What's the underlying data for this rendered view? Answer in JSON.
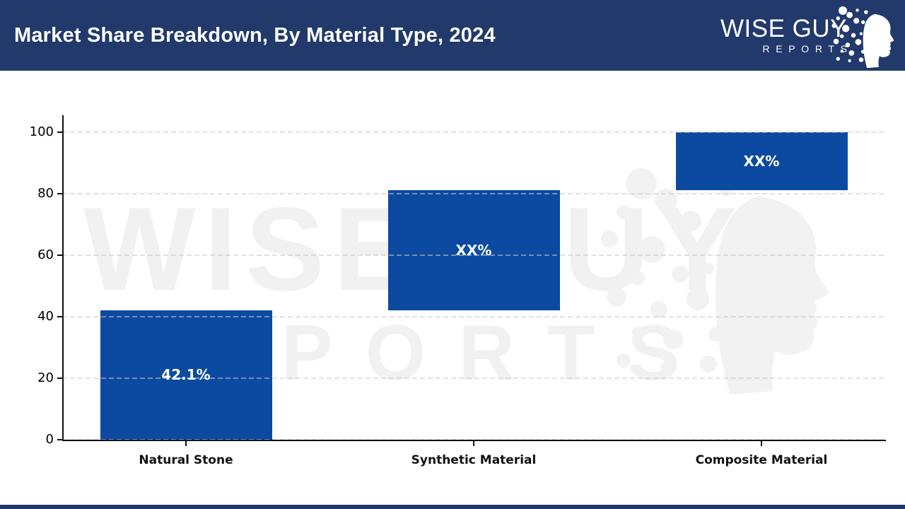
{
  "header": {
    "title": "Market Share Breakdown, By Material Type, 2024",
    "brand": {
      "name_line": "WISE GUY",
      "reports_line": "REPORTS"
    }
  },
  "watermark": {
    "name_line": "WISE GUY",
    "reports_line": "REPORTS"
  },
  "colors": {
    "page_bg": "#ffffff",
    "header_bg": "#21396b",
    "title_text": "#ffffff",
    "bar_fill": "#0c4aa1",
    "bar_label": "#ffffff",
    "grid_line": "#c8c8c8",
    "axis_line": "#111111",
    "tick_label": "#000000",
    "category_label": "#111111",
    "watermark_gray": "#f1f1f1"
  },
  "chart_data": {
    "type": "bar",
    "variant": "stacked-waterfall",
    "title": "Market Share Breakdown, By Material Type, 2024",
    "categories": [
      "Natural Stone",
      "Synthetic Material",
      "Composite Material"
    ],
    "segments": [
      {
        "category": "Natural Stone",
        "start": 0,
        "end": 42.1,
        "value_label": "42.1%"
      },
      {
        "category": "Synthetic Material",
        "start": 42.1,
        "end": 81.2,
        "value_label": "XX%"
      },
      {
        "category": "Composite Material",
        "start": 81.2,
        "end": 100,
        "value_label": "XX%"
      }
    ],
    "xlabel": "",
    "ylabel": "",
    "yticks": [
      0,
      20,
      40,
      60,
      80,
      100
    ],
    "ylim": [
      0,
      105.5
    ],
    "grid": "horizontal-dashed",
    "legend": "none"
  }
}
